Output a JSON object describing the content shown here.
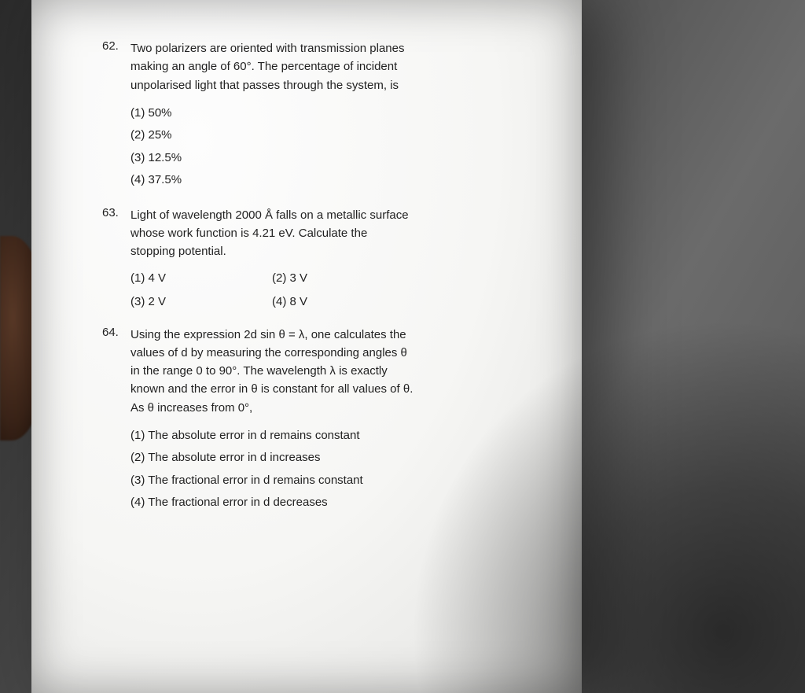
{
  "questions": [
    {
      "number": "62.",
      "stem": "Two polarizers are oriented with transmission planes making an angle of 60°. The percentage of incident unpolarised light that passes through the system, is",
      "layout": "1col",
      "options": [
        "(1)  50%",
        "(2)  25%",
        "(3)  12.5%",
        "(4)  37.5%"
      ]
    },
    {
      "number": "63.",
      "stem": "Light of wavelength 2000 Å falls on a metallic surface whose work function is 4.21 eV. Calculate the stopping potential.",
      "layout": "2col",
      "options": [
        "(1)  4 V",
        "(2)  3 V",
        "(3)  2 V",
        "(4)  8 V"
      ]
    },
    {
      "number": "64.",
      "stem": "Using the expression 2d sin θ = λ, one calculates the values of d by measuring the corresponding angles θ in the range 0 to 90°. The wavelength λ is exactly known and the error in θ is constant for all values of θ. As θ increases from 0°,",
      "layout": "1col",
      "options": [
        "(1)  The absolute error in d remains constant",
        "(2)  The absolute error in d increases",
        "(3)  The fractional error in d remains constant",
        "(4)  The fractional error in d decreases"
      ]
    }
  ]
}
